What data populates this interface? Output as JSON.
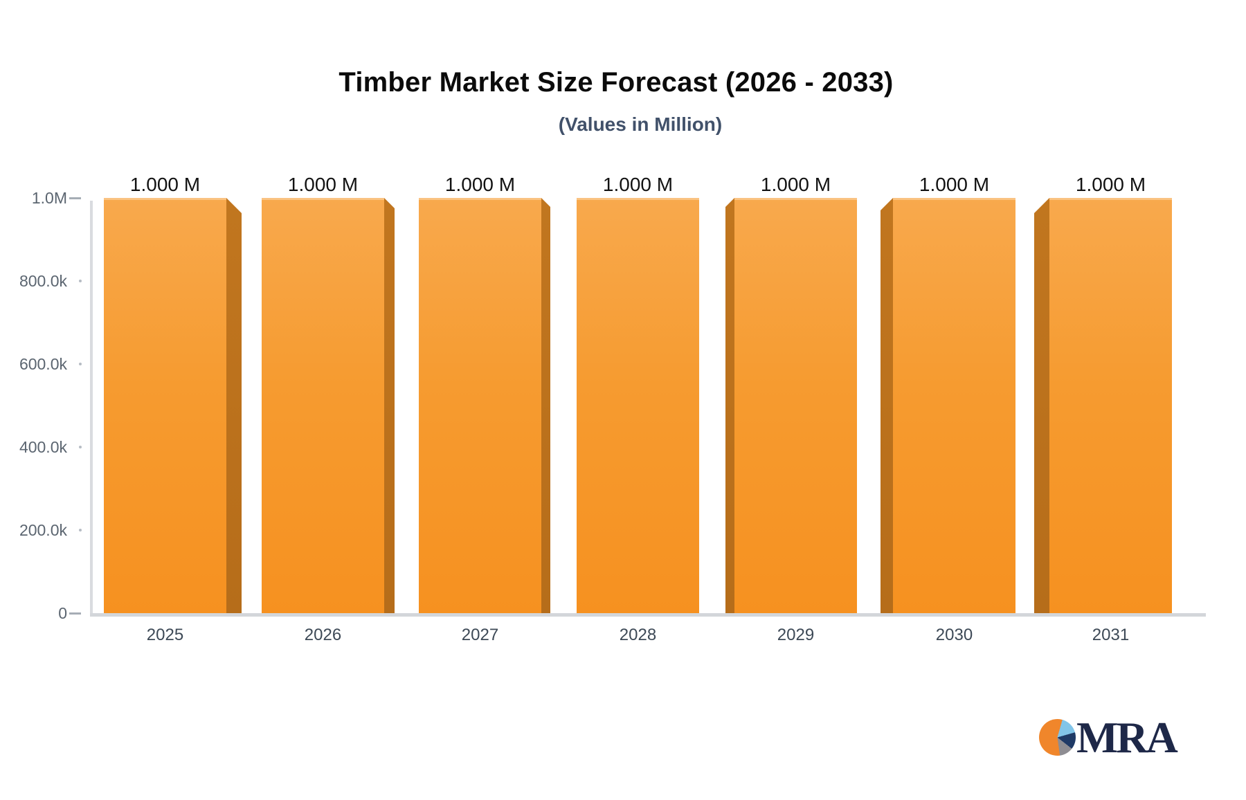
{
  "title": "Timber Market Size Forecast (2026 - 2033)",
  "subtitle": "(Values in Million)",
  "chart_data": {
    "type": "bar",
    "title": "Timber Market Size Forecast (2026 - 2033)",
    "subtitle": "(Values in Million)",
    "categories": [
      "2025",
      "2026",
      "2027",
      "2028",
      "2029",
      "2030",
      "2031"
    ],
    "values": [
      1000000,
      1000000,
      1000000,
      1000000,
      1000000,
      1000000,
      1000000
    ],
    "bar_labels": [
      "1.000 M",
      "1.000 M",
      "1.000 M",
      "1.000 M",
      "1.000 M",
      "1.000 M",
      "1.000 M"
    ],
    "xlabel": "",
    "ylabel": "",
    "ylim": [
      0,
      1000000
    ],
    "ytick_labels": [
      "0",
      "200.0k",
      "400.0k",
      "600.0k",
      "800.0k",
      "1.0M"
    ],
    "grid": false,
    "legend": false,
    "style": "3d-perspective-columns",
    "bar_color": "#f7941e",
    "bar_side_color": "#bc721c"
  },
  "logo": {
    "text": "MRA",
    "pie_colors": [
      "#f0862b",
      "#82c5e9",
      "#1f3a66",
      "#8e8d92"
    ],
    "text_color": "#1e2848"
  }
}
